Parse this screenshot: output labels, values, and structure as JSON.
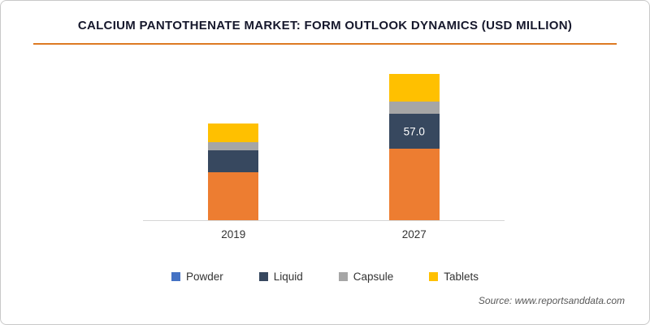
{
  "title": "CALCIUM PANTOTHENATE MARKET: FORM OUTLOOK DYNAMICS (USD MILLION)",
  "source": "Source: www.reportsanddata.com",
  "accent_underline_color": "#dd7a23",
  "chart_data": {
    "type": "bar",
    "stacked": true,
    "title": "CALCIUM PANTOTHENATE MARKET: FORM OUTLOOK DYNAMICS (USD MILLION)",
    "categories": [
      "2019",
      "2027"
    ],
    "series": [
      {
        "name": "Powder",
        "legend_color": "#4472c4",
        "bar_color": "#ed7d31",
        "values": [
          77,
          115
        ]
      },
      {
        "name": "Liquid",
        "legend_color": "#37485f",
        "bar_color": "#37485f",
        "values": [
          36,
          57
        ]
      },
      {
        "name": "Capsule",
        "legend_color": "#a6a6a6",
        "bar_color": "#a6a6a6",
        "values": [
          13,
          20
        ]
      },
      {
        "name": "Tablets",
        "legend_color": "#ffc000",
        "bar_color": "#ffc000",
        "values": [
          30,
          44
        ]
      }
    ],
    "data_labels": [
      {
        "category": "2027",
        "series": "Liquid",
        "label": "57.0"
      }
    ],
    "xlabel": "",
    "ylabel": "",
    "ylim": [
      0,
      240
    ],
    "grid": false,
    "legend_position": "bottom"
  }
}
